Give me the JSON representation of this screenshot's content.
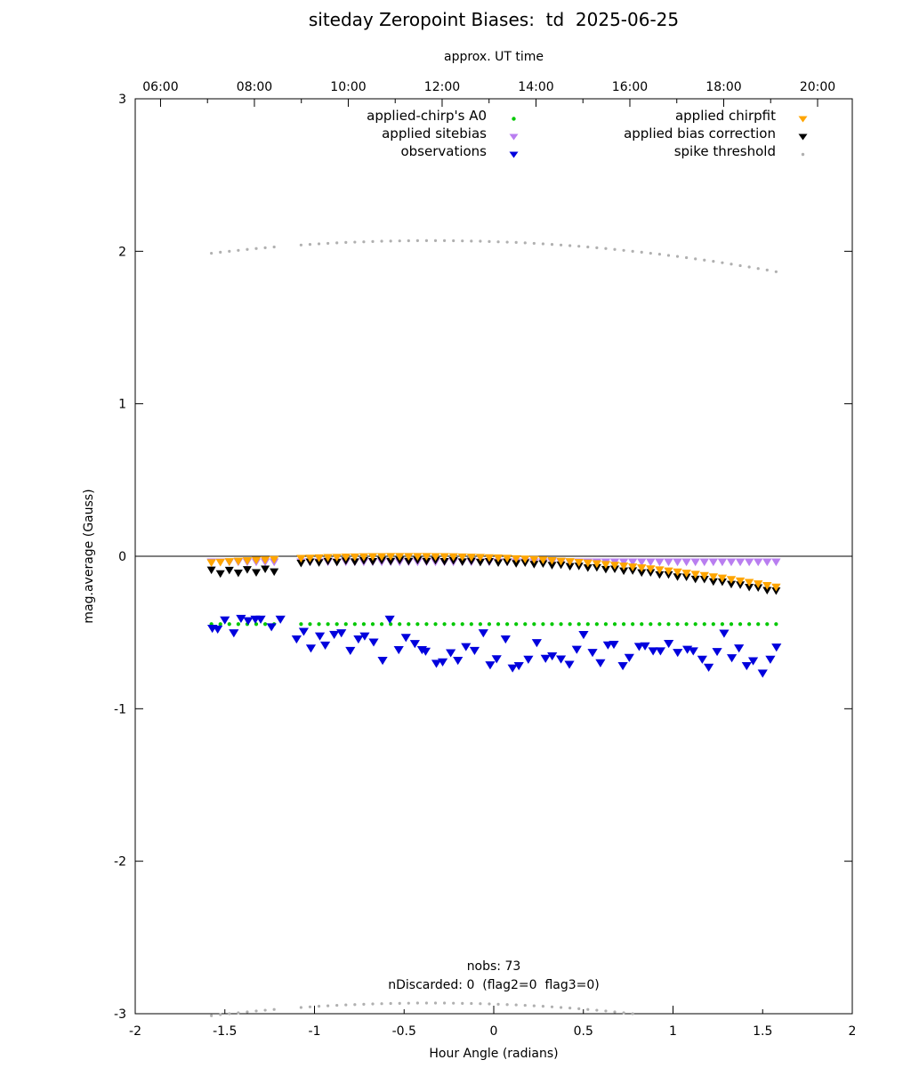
{
  "title": "siteday Zeropoint Biases:  td  2025-06-25",
  "annotations": {
    "nobs_line": "nobs: 73",
    "ndiscarded_line": "nDiscarded: 0  (flag2=0  flag3=0)"
  },
  "legend": {
    "left": [
      {
        "label": "applied-chirp's A0",
        "series": "a0"
      },
      {
        "label": "applied sitebias",
        "series": "sitebias"
      },
      {
        "label": "observations",
        "series": "observations"
      }
    ],
    "right": [
      {
        "label": "applied chirpfit",
        "series": "chirpfit"
      },
      {
        "label": "applied bias correction",
        "series": "bias_correction"
      },
      {
        "label": "spike threshold",
        "series": "spike_threshold"
      }
    ]
  },
  "chart_data": {
    "type": "scatter",
    "title": "siteday Zeropoint Biases:  td  2025-06-25",
    "top_axis": {
      "title": "approx. UT time",
      "major_hours": [
        6,
        8,
        10,
        12,
        14,
        16,
        18,
        20
      ],
      "major_labels": [
        "06:00",
        "08:00",
        "10:00",
        "12:00",
        "14:00",
        "16:00",
        "18:00",
        "20:00"
      ],
      "minor_hours": [
        7,
        9,
        11,
        13,
        15,
        17,
        19
      ],
      "hour_to_radian_slope": 0.2618,
      "zero_radian_hour": 13.1
    },
    "x_axis": {
      "title": "Hour Angle (radians)",
      "range": [
        -2,
        2
      ],
      "tick_values": [
        -2,
        -1.5,
        -1,
        -0.5,
        0,
        0.5,
        1,
        1.5,
        2
      ],
      "tick_labels": [
        "-2",
        "-1.5",
        "-1",
        "-0.5",
        "0",
        "0.5",
        "1",
        "1.5",
        "2"
      ],
      "major_ticks": [
        -2,
        -1,
        0,
        1,
        2
      ],
      "minor_ticks": [
        -1.5,
        -0.5,
        0.5,
        1.5
      ]
    },
    "y_axis": {
      "title": "mag.average (Gauss)",
      "range": [
        -3,
        3
      ],
      "tick_values": [
        3,
        2,
        1,
        0,
        -1,
        -2,
        -3
      ],
      "tick_labels": [
        "3",
        "2",
        "1",
        "0",
        "-1",
        "-2",
        "-3"
      ]
    },
    "zero_line": true,
    "grid": false,
    "legend_position": "top-inside",
    "nobs": 73,
    "nDiscarded": 0,
    "shared_x": [
      -1.575,
      -1.525,
      -1.475,
      -1.425,
      -1.375,
      -1.325,
      -1.275,
      -1.225,
      -1.075,
      -1.025,
      -0.975,
      -0.925,
      -0.875,
      -0.825,
      -0.775,
      -0.725,
      -0.675,
      -0.625,
      -0.575,
      -0.525,
      -0.475,
      -0.425,
      -0.375,
      -0.325,
      -0.275,
      -0.225,
      -0.175,
      -0.125,
      -0.075,
      -0.025,
      0.025,
      0.075,
      0.125,
      0.175,
      0.225,
      0.275,
      0.325,
      0.375,
      0.425,
      0.475,
      0.525,
      0.575,
      0.625,
      0.675,
      0.725,
      0.775,
      0.825,
      0.875,
      0.925,
      0.975,
      1.025,
      1.075,
      1.125,
      1.175,
      1.225,
      1.275,
      1.325,
      1.375,
      1.425,
      1.475,
      1.525,
      1.575
    ],
    "draw_order": [
      "spike_threshold_lower",
      "spike_threshold",
      "a0",
      "observations",
      "sitebias",
      "bias_correction",
      "chirpfit"
    ],
    "series": [
      {
        "key": "spike_threshold",
        "name": "spike threshold",
        "color": "#b0b0b0",
        "marker": "dot_small",
        "use_shared_x": true,
        "y": [
          1.987,
          1.994,
          2.0,
          2.006,
          2.012,
          2.018,
          2.023,
          2.028,
          2.041,
          2.045,
          2.049,
          2.052,
          2.055,
          2.058,
          2.06,
          2.062,
          2.064,
          2.066,
          2.067,
          2.068,
          2.069,
          2.07,
          2.07,
          2.07,
          2.07,
          2.069,
          2.068,
          2.067,
          2.066,
          2.064,
          2.062,
          2.06,
          2.058,
          2.055,
          2.052,
          2.049,
          2.045,
          2.041,
          2.037,
          2.033,
          2.028,
          2.023,
          2.018,
          2.012,
          2.006,
          2.0,
          1.994,
          1.987,
          1.981,
          1.973,
          1.966,
          1.958,
          1.95,
          1.942,
          1.934,
          1.925,
          1.916,
          1.906,
          1.897,
          1.887,
          1.877,
          1.866
        ]
      },
      {
        "key": "spike_threshold_lower",
        "name": "spike threshold (lower branch)",
        "color": "#b0b0b0",
        "marker": "dot_small",
        "x": [
          -1.575,
          -1.525,
          -1.475,
          -1.425,
          -1.375,
          -1.325,
          -1.275,
          -1.225,
          -1.075,
          -1.025,
          -0.975,
          -0.925,
          -0.875,
          -0.825,
          -0.775,
          -0.725,
          -0.675,
          -0.625,
          -0.575,
          -0.525,
          -0.475,
          -0.425,
          -0.375,
          -0.325,
          -0.275,
          -0.225,
          -0.175,
          -0.125,
          -0.075,
          -0.025,
          0.025,
          0.075,
          0.125,
          0.175,
          0.225,
          0.275,
          0.325,
          0.375,
          0.425,
          0.475,
          0.525,
          0.575,
          0.625,
          0.675,
          0.725,
          0.775
        ],
        "y": [
          -3.013,
          -3.006,
          -3.0,
          -2.994,
          -2.988,
          -2.982,
          -2.977,
          -2.972,
          -2.959,
          -2.955,
          -2.951,
          -2.948,
          -2.945,
          -2.942,
          -2.94,
          -2.938,
          -2.936,
          -2.934,
          -2.933,
          -2.932,
          -2.931,
          -2.93,
          -2.93,
          -2.93,
          -2.93,
          -2.931,
          -2.932,
          -2.933,
          -2.934,
          -2.936,
          -2.938,
          -2.94,
          -2.942,
          -2.945,
          -2.948,
          -2.951,
          -2.955,
          -2.959,
          -2.963,
          -2.967,
          -2.972,
          -2.977,
          -2.982,
          -2.988,
          -2.994,
          -3.0
        ]
      },
      {
        "key": "a0",
        "name": "applied-chirp's A0",
        "color": "#00c800",
        "marker": "dot",
        "use_shared_x": true,
        "y_constant": -0.445
      },
      {
        "key": "observations",
        "name": "observations",
        "color": "#0000dd",
        "marker": "triangle",
        "size": 5.6,
        "x": [
          -1.57,
          -1.54,
          -1.5,
          -1.45,
          -1.41,
          -1.37,
          -1.33,
          -1.3,
          -1.24,
          -1.19,
          -1.1,
          -1.06,
          -1.02,
          -0.97,
          -0.94,
          -0.89,
          -0.85,
          -0.8,
          -0.755,
          -0.72,
          -0.67,
          -0.62,
          -0.58,
          -0.53,
          -0.49,
          -0.44,
          -0.4,
          -0.38,
          -0.32,
          -0.285,
          -0.24,
          -0.2,
          -0.155,
          -0.107,
          -0.058,
          -0.02,
          0.016,
          0.066,
          0.105,
          0.14,
          0.193,
          0.24,
          0.289,
          0.326,
          0.375,
          0.422,
          0.463,
          0.501,
          0.551,
          0.595,
          0.637,
          0.67,
          0.72,
          0.756,
          0.811,
          0.844,
          0.889,
          0.93,
          0.976,
          1.026,
          1.08,
          1.113,
          1.163,
          1.199,
          1.246,
          1.285,
          1.328,
          1.368,
          1.411,
          1.447,
          1.5,
          1.543,
          1.577
        ],
        "y": [
          -0.47,
          -0.475,
          -0.415,
          -0.5,
          -0.405,
          -0.42,
          -0.41,
          -0.41,
          -0.46,
          -0.41,
          -0.54,
          -0.49,
          -0.6,
          -0.52,
          -0.58,
          -0.51,
          -0.5,
          -0.615,
          -0.54,
          -0.52,
          -0.56,
          -0.68,
          -0.41,
          -0.61,
          -0.53,
          -0.57,
          -0.61,
          -0.62,
          -0.7,
          -0.69,
          -0.63,
          -0.68,
          -0.59,
          -0.615,
          -0.5,
          -0.71,
          -0.67,
          -0.54,
          -0.73,
          -0.715,
          -0.673,
          -0.564,
          -0.667,
          -0.651,
          -0.671,
          -0.706,
          -0.608,
          -0.511,
          -0.628,
          -0.696,
          -0.579,
          -0.575,
          -0.715,
          -0.661,
          -0.589,
          -0.585,
          -0.618,
          -0.618,
          -0.569,
          -0.628,
          -0.608,
          -0.618,
          -0.673,
          -0.725,
          -0.622,
          -0.502,
          -0.663,
          -0.599,
          -0.715,
          -0.683,
          -0.764,
          -0.673,
          -0.593
        ]
      },
      {
        "key": "sitebias",
        "name": "applied sitebias",
        "color": "#b97ef0",
        "marker": "triangle",
        "size": 5.2,
        "use_shared_x": true,
        "y_constant": -0.035
      },
      {
        "key": "bias_correction",
        "name": "applied bias correction",
        "color": "#000000",
        "marker": "triangle",
        "size": 5.0,
        "use_shared_x": true,
        "y": [
          -0.088,
          -0.112,
          -0.09,
          -0.108,
          -0.085,
          -0.105,
          -0.082,
          -0.1,
          -0.044,
          -0.035,
          -0.04,
          -0.031,
          -0.037,
          -0.028,
          -0.034,
          -0.026,
          -0.032,
          -0.025,
          -0.031,
          -0.024,
          -0.031,
          -0.024,
          -0.031,
          -0.025,
          -0.032,
          -0.026,
          -0.034,
          -0.029,
          -0.037,
          -0.032,
          -0.041,
          -0.036,
          -0.046,
          -0.041,
          -0.051,
          -0.047,
          -0.058,
          -0.055,
          -0.065,
          -0.063,
          -0.074,
          -0.072,
          -0.084,
          -0.082,
          -0.094,
          -0.093,
          -0.106,
          -0.105,
          -0.119,
          -0.119,
          -0.133,
          -0.134,
          -0.148,
          -0.149,
          -0.165,
          -0.166,
          -0.182,
          -0.185,
          -0.201,
          -0.204,
          -0.222,
          -0.225
        ]
      },
      {
        "key": "chirpfit",
        "name": "applied chirpfit",
        "color": "#ffa500",
        "marker": "triangle",
        "size": 5.2,
        "use_shared_x": true,
        "y": [
          -0.04,
          -0.037,
          -0.033,
          -0.03,
          -0.027,
          -0.024,
          -0.022,
          -0.019,
          -0.012,
          -0.01,
          -0.008,
          -0.006,
          -0.005,
          -0.003,
          -0.002,
          -0.001,
          0.0,
          0.0,
          0.001,
          0.001,
          0.001,
          0.001,
          0.001,
          0.0,
          0.0,
          -0.001,
          -0.002,
          -0.004,
          -0.005,
          -0.007,
          -0.009,
          -0.011,
          -0.014,
          -0.016,
          -0.019,
          -0.022,
          -0.026,
          -0.03,
          -0.033,
          -0.038,
          -0.042,
          -0.047,
          -0.052,
          -0.057,
          -0.062,
          -0.068,
          -0.074,
          -0.08,
          -0.087,
          -0.094,
          -0.101,
          -0.109,
          -0.116,
          -0.124,
          -0.133,
          -0.141,
          -0.15,
          -0.16,
          -0.169,
          -0.179,
          -0.19,
          -0.2
        ]
      }
    ]
  }
}
